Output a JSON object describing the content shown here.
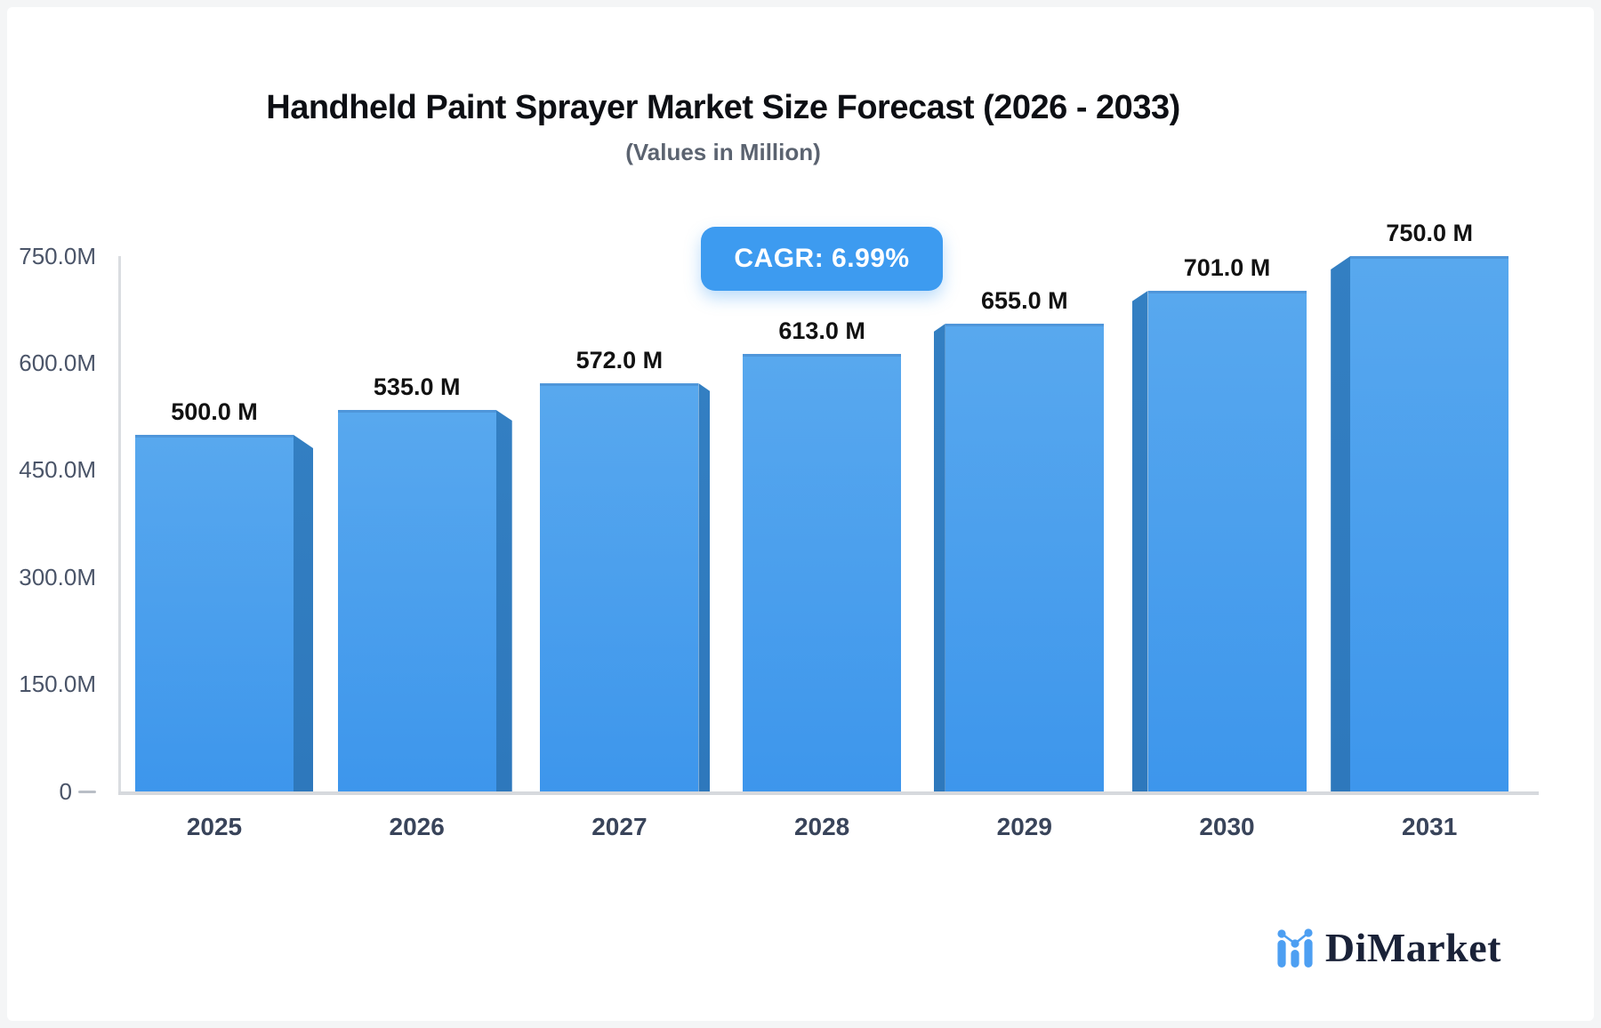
{
  "page": {
    "background_color": "#f4f5f6",
    "card_color": "#ffffff"
  },
  "header": {
    "title": "Handheld Paint Sprayer Market Size Forecast (2026 - 2033)",
    "subtitle": "(Values in Million)"
  },
  "badge": {
    "label": "CAGR: 6.99%",
    "background": "#3d9bf0",
    "text_color": "#ffffff"
  },
  "chart_data": {
    "type": "bar",
    "title": "Handheld Paint Sprayer Market Size Forecast (2026 - 2033)",
    "subtitle": "(Values in Million)",
    "categories": [
      "2025",
      "2026",
      "2027",
      "2028",
      "2029",
      "2030",
      "2031"
    ],
    "values": [
      500,
      535,
      572,
      613,
      655,
      701,
      750
    ],
    "bar_labels": [
      "500.0 M",
      "535.0 M",
      "572.0 M",
      "613.0 M",
      "655.0 M",
      "701.0 M",
      "750.0 M"
    ],
    "unit": "Million",
    "ylim": [
      0,
      750
    ],
    "y_ticks": [
      {
        "label": "750.0M",
        "value": 750,
        "dash": false
      },
      {
        "label": "600.0M",
        "value": 600,
        "dash": false
      },
      {
        "label": "450.0M",
        "value": 450,
        "dash": false
      },
      {
        "label": "300.0M",
        "value": 300,
        "dash": false
      },
      {
        "label": "150.0M",
        "value": 150,
        "dash": false
      },
      {
        "label": "0",
        "value": 0,
        "dash": true
      }
    ],
    "grid": false,
    "legend": false,
    "style": "3d-perspective-bars",
    "colors": {
      "bar_top": "#58a8ee",
      "bar_bottom": "#3d96ec",
      "bar_side": "#2e78bc",
      "axis_line": "#d8dbdf",
      "tick_text": "#4a5468",
      "category_text": "#39445a",
      "value_text": "#121212"
    }
  },
  "footer": {
    "brand": "DiMarket",
    "brand_color": "#1a2238",
    "icon": "bar-chart-logo-icon",
    "icon_color": "#4d9ff2"
  }
}
